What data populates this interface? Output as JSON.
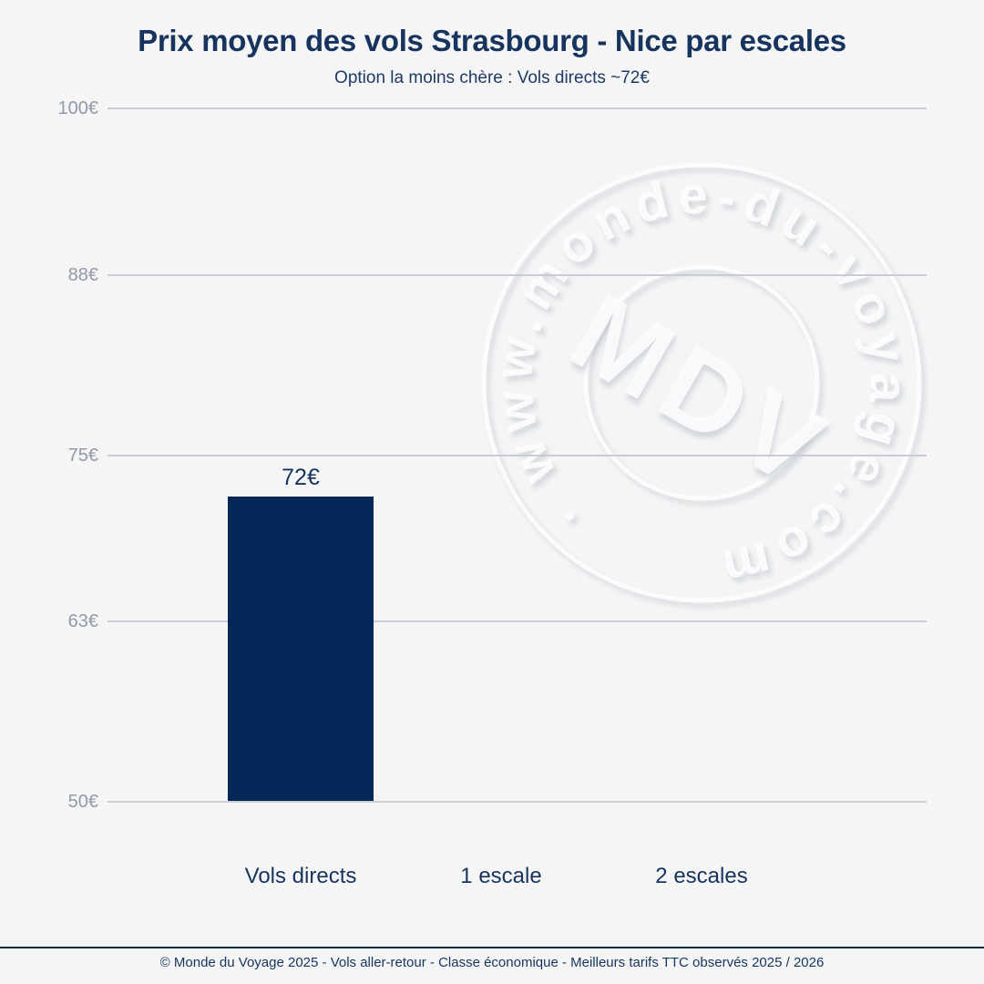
{
  "chart_data": {
    "type": "bar",
    "title": "Prix moyen des vols Strasbourg - Nice par escales",
    "subtitle": "Option la moins chère : Vols directs ~72€",
    "categories": [
      "Vols directs",
      "1 escale",
      "2 escales"
    ],
    "values": [
      72,
      null,
      null
    ],
    "value_labels": [
      "72€",
      "",
      ""
    ],
    "yticks": [
      100,
      88,
      75,
      63,
      50
    ],
    "ytick_labels": [
      "100€",
      "88€",
      "75€",
      "63€",
      "50€"
    ],
    "ylim": [
      50,
      100
    ],
    "ylabel": "",
    "xlabel": "",
    "grid": true,
    "legend": false,
    "bar_color": "#032757"
  },
  "watermark": {
    "ring_text": "· www.monde-du-voyage.com",
    "center_text": "MDV"
  },
  "footer": {
    "text": "© Monde du Voyage 2025 - Vols aller-retour - Classe économique - Meilleurs tarifs TTC observés 2025 / 2026"
  },
  "colors": {
    "bg": "#f5f5f6",
    "navy": "#16345e",
    "navy-soft": "#1d3b66",
    "axis": "#9199a9",
    "grid": "#c7ccd6",
    "bar": "#032757",
    "footer-line": "#122742"
  }
}
